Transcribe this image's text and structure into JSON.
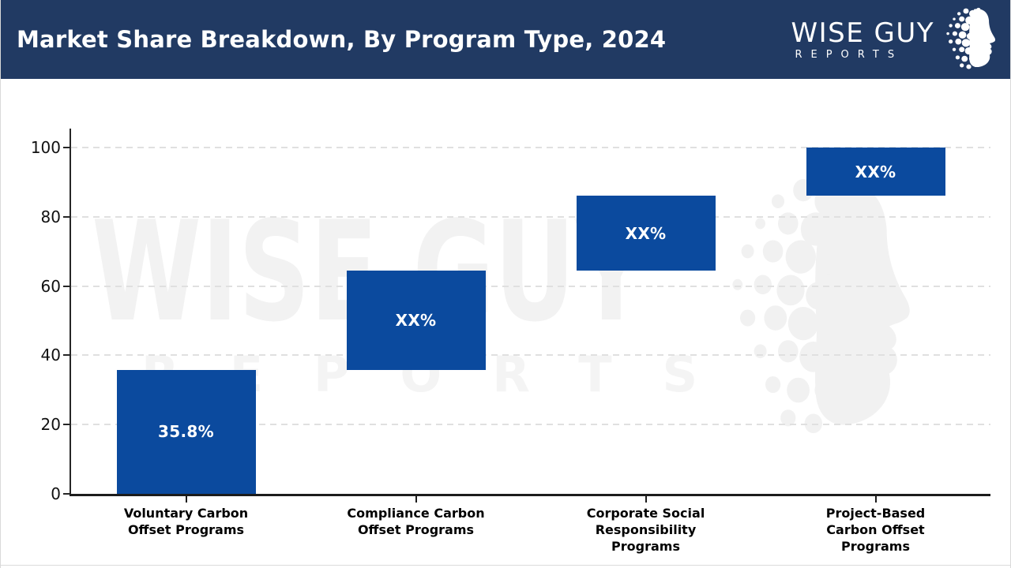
{
  "header": {
    "title": "Market Share Breakdown, By Program Type, 2024",
    "logo": {
      "primary": "WISE GUY",
      "secondary": "REPORTS"
    }
  },
  "watermark": {
    "primary": "WISE GUY",
    "secondary": "REPORTS"
  },
  "colors": {
    "header_bg": "#213A63",
    "bar": "#0B4A9E",
    "bar_label": "#FFFFFF",
    "grid": "#E0E0E0",
    "axis": "#1C1C1C",
    "watermark": "#F2F2F2"
  },
  "chart_data": {
    "type": "bar",
    "subtype": "waterfall",
    "title": "Market Share Breakdown, By Program Type, 2024",
    "xlabel": "",
    "ylabel": "",
    "ylim": [
      0,
      100
    ],
    "yticks": [
      0,
      20,
      40,
      60,
      80,
      100
    ],
    "grid": "horizontal-dashed",
    "legend": "none",
    "categories": [
      "Voluntary Carbon Offset Programs",
      "Compliance Carbon Offset Programs",
      "Corporate Social Responsibility Programs",
      "Project-Based Carbon Offset Programs"
    ],
    "category_lines": [
      [
        "Voluntary Carbon",
        "Offset Programs"
      ],
      [
        "Compliance Carbon",
        "Offset Programs"
      ],
      [
        "Corporate Social",
        "Responsibility",
        "Programs"
      ],
      [
        "Project-Based",
        "Carbon Offset",
        "Programs"
      ]
    ],
    "segments": [
      {
        "start": 0,
        "end": 35.8,
        "label": "35.8%"
      },
      {
        "start": 35.8,
        "end": 64.5,
        "label": "XX%"
      },
      {
        "start": 64.5,
        "end": 86.0,
        "label": "XX%"
      },
      {
        "start": 86.0,
        "end": 100,
        "label": "XX%"
      }
    ]
  }
}
